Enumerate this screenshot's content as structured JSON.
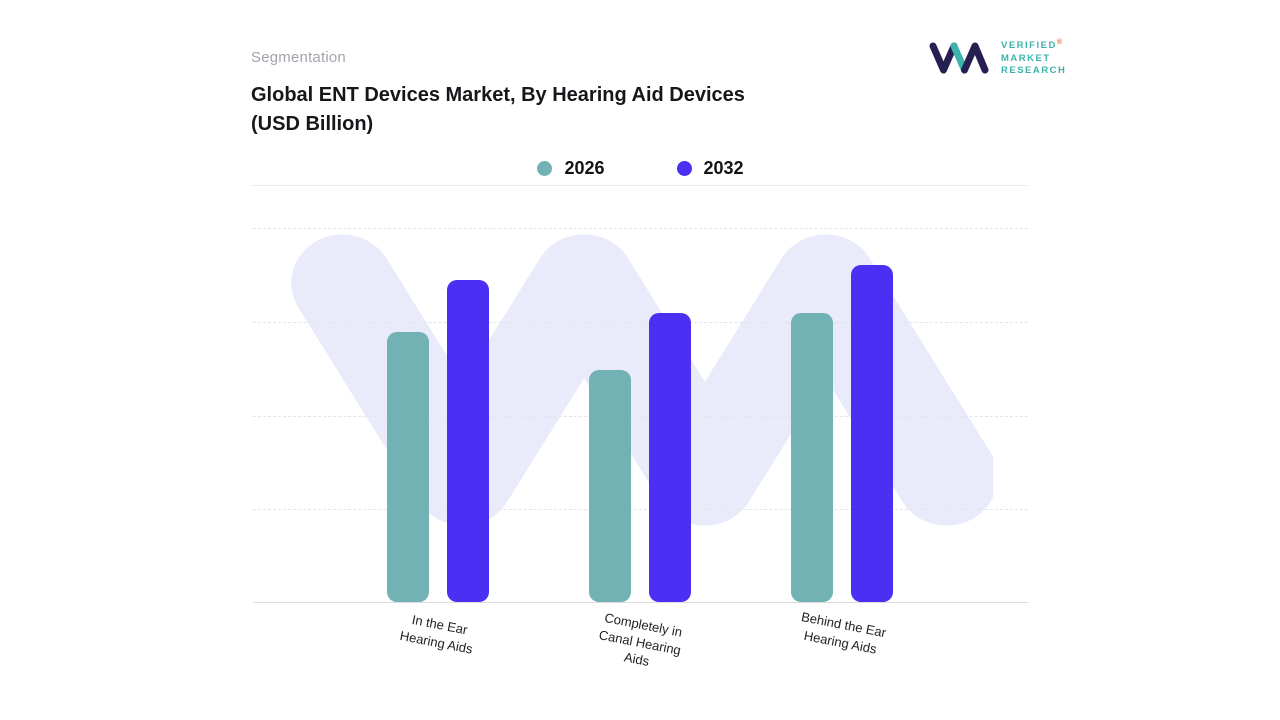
{
  "page": {
    "section_label": "Segmentation",
    "title_line1": "Global ENT Devices Market, By Hearing Aid Devices",
    "title_line2": "(USD Billion)"
  },
  "logo": {
    "line1": "VERIFIED",
    "line2": "MARKET",
    "line3": "RESEARCH",
    "registered": "®",
    "mark_navy": "#262052",
    "mark_teal": "#3cb3ab"
  },
  "legend": [
    {
      "label": "2026",
      "color": "#73b2b4"
    },
    {
      "label": "2032",
      "color": "#4b2ff2"
    }
  ],
  "watermark_color": "#e9ebfa",
  "chart_data": {
    "type": "bar",
    "title": "Global ENT Devices Market, By Hearing Aid Devices (USD Billion)",
    "categories": [
      "In the Ear Hearing Aids",
      "Completely in Canal Hearing Aids",
      "Behind the Ear Hearing Aids"
    ],
    "categories_display": [
      [
        "In the Ear",
        "Hearing Aids"
      ],
      [
        "Completely in",
        "Canal Hearing",
        "Aids"
      ],
      [
        "Behind the Ear",
        "Hearing Aids"
      ]
    ],
    "series": [
      {
        "name": "2026",
        "color": "#73b2b4",
        "values": [
          72,
          62,
          77
        ]
      },
      {
        "name": "2032",
        "color": "#4b2ff2",
        "values": [
          86,
          77,
          90
        ]
      }
    ],
    "xlabel": "",
    "ylabel": "",
    "ylim": [
      0,
      100
    ],
    "grid": "horizontal-dashed",
    "legend_position": "top-center",
    "value_axis_labels_visible": false
  }
}
